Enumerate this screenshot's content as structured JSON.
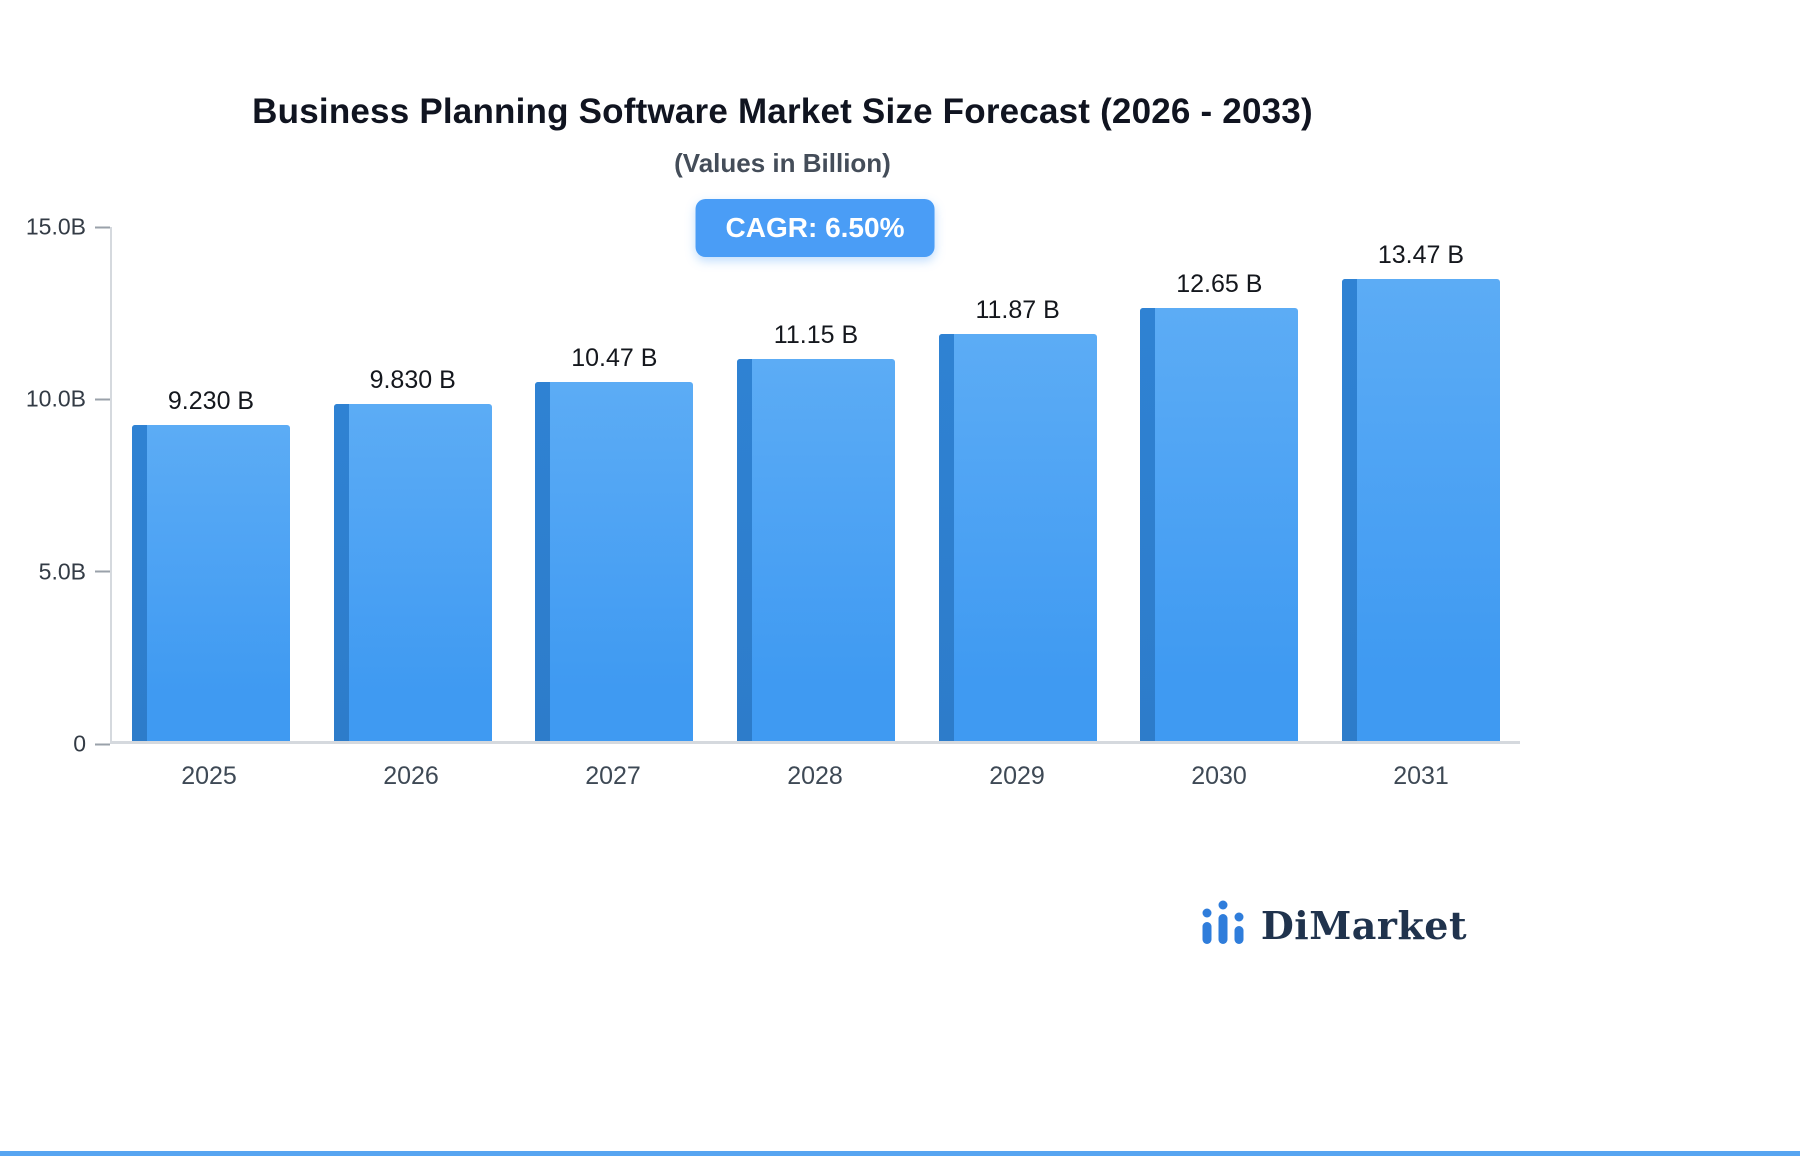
{
  "page": {
    "title": "Business Planning Software Market Size Forecast (2026 - 2033)",
    "subtitle": "(Values in Billion)",
    "cagr_badge": "CAGR: 6.50%"
  },
  "brand": {
    "name": "DiMarket",
    "icon": "bar-chart-logo-icon"
  },
  "colors": {
    "bar_fill": "#3f9af2",
    "bar_fill_light": "#5cacf5",
    "bar_edge": "#2d7cca",
    "badge_bg": "#4a9df6",
    "brand_text": "#20334d",
    "brand_icon": "#2f7ddb",
    "axis_line": "#d5d9de",
    "bottom_line": "#57a5f1"
  },
  "chart_data": {
    "type": "bar",
    "title": "Business Planning Software Market Size Forecast (2026 - 2033)",
    "subtitle": "(Values in Billion)",
    "annotation": "CAGR: 6.50%",
    "categories": [
      "2025",
      "2026",
      "2027",
      "2028",
      "2029",
      "2030",
      "2031"
    ],
    "values": [
      9.23,
      9.83,
      10.47,
      11.15,
      11.87,
      12.65,
      13.47
    ],
    "value_labels": [
      "9.230 B",
      "9.830 B",
      "10.47 B",
      "11.15 B",
      "11.87 B",
      "12.65 B",
      "13.47 B"
    ],
    "xlabel": "",
    "ylabel": "",
    "ylim": [
      0,
      15
    ],
    "yticks": [
      {
        "label": "15.0B",
        "value": 15
      },
      {
        "label": "10.0B",
        "value": 10
      },
      {
        "label": "5.0B",
        "value": 5
      },
      {
        "label": "0",
        "value": 0
      }
    ],
    "grid": false,
    "legend": false
  }
}
